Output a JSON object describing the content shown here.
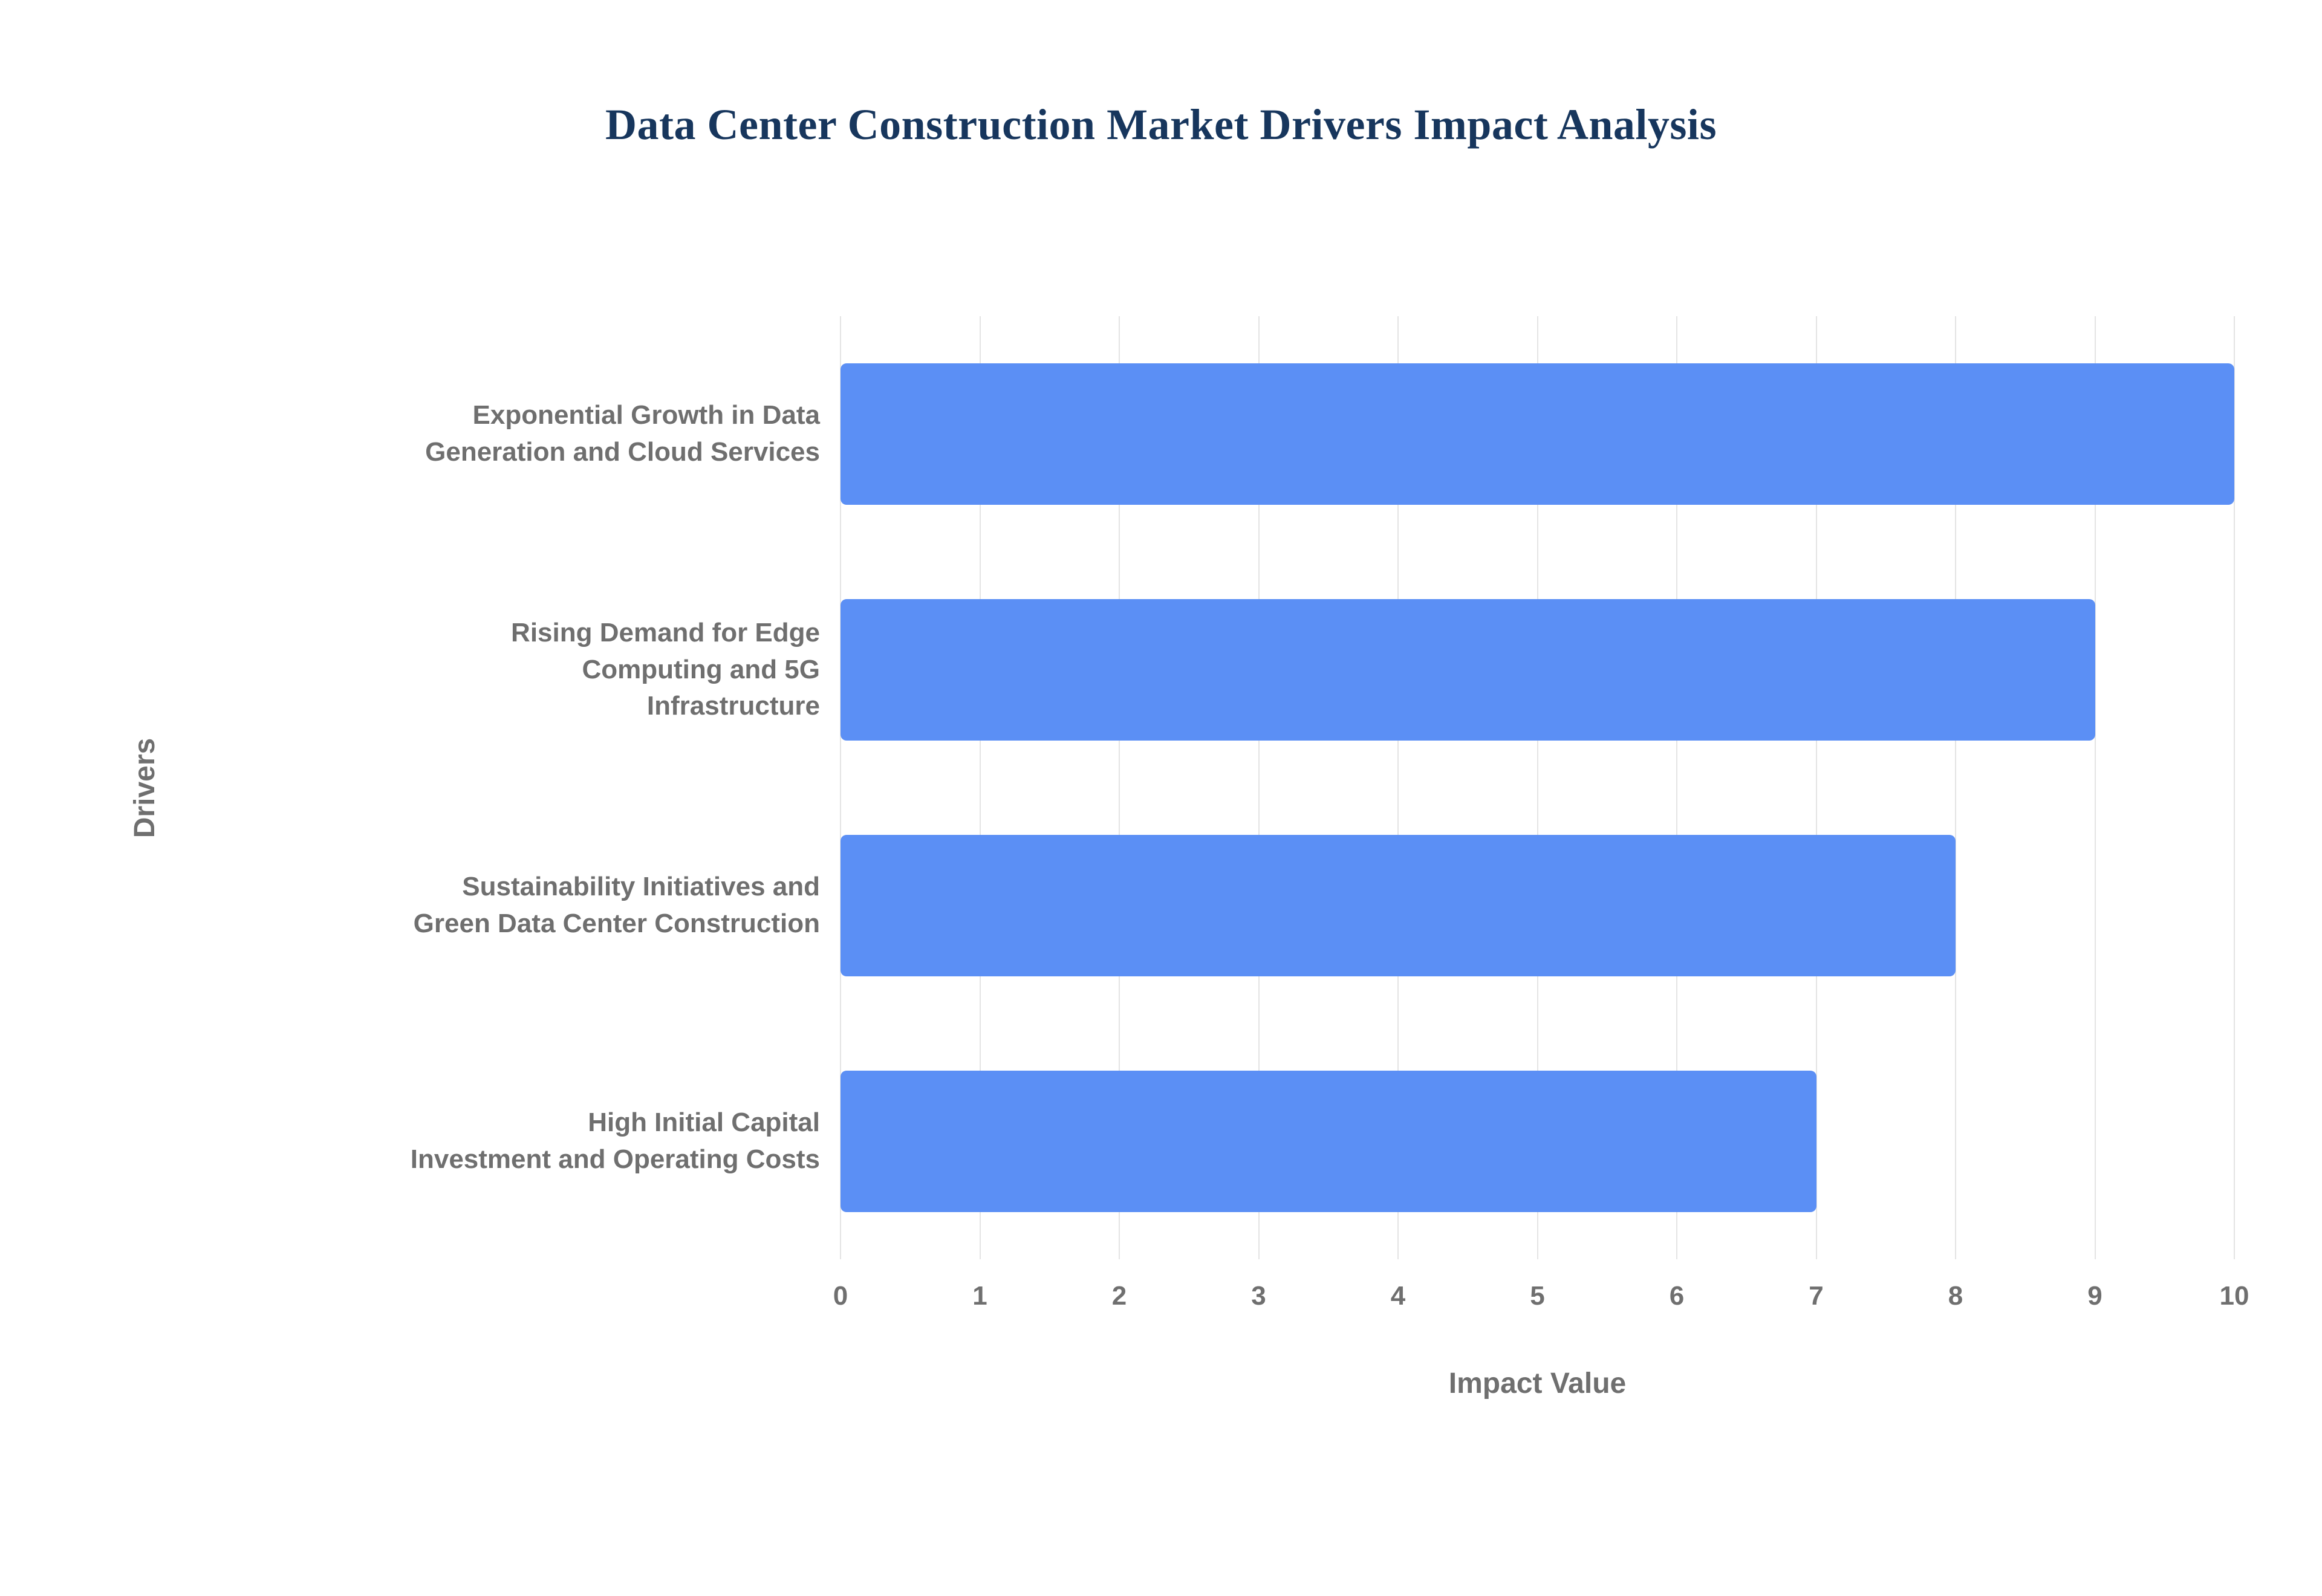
{
  "page": {
    "background": "#ffffff"
  },
  "chart_data": {
    "type": "bar",
    "orientation": "horizontal",
    "title": "Data Center Construction Market Drivers Impact Analysis",
    "categories": [
      "Exponential Growth in Data\nGeneration and Cloud Services",
      "Rising Demand for Edge\nComputing and 5G\nInfrastructure",
      "Sustainability Initiatives and\nGreen Data Center Construction",
      "High Initial Capital\nInvestment and Operating Costs"
    ],
    "values": [
      10,
      9,
      8,
      7
    ],
    "xlabel": "Impact Value",
    "ylabel": "Drivers",
    "xlim": [
      0,
      10
    ],
    "xticks": [
      0,
      1,
      2,
      3,
      4,
      5,
      6,
      7,
      8,
      9,
      10
    ],
    "grid": true,
    "legend_position": "none",
    "colors": {
      "bar": "#5b8ff5",
      "title": "#17365d",
      "axis_text": "#6f6f6f",
      "gridline": "#e4e4e4"
    }
  }
}
